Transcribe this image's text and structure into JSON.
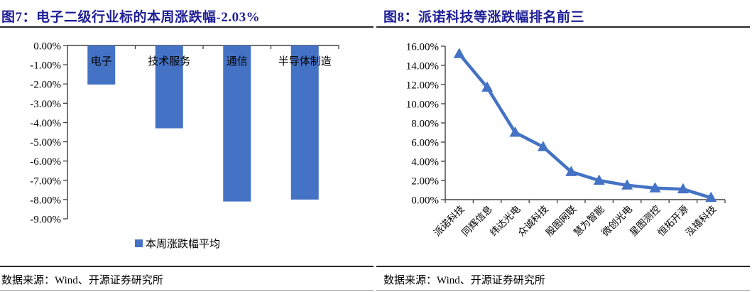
{
  "colors": {
    "accent_blue": "#4472C4",
    "title_navy": "#1E1E96",
    "axis_gray": "#404040",
    "rule_dark": "#26262E",
    "text_black": "#000000"
  },
  "fig7": {
    "title": "图7：电子二级行业标的本周涨跌幅-2.03%",
    "source_label": "数据来源：",
    "source_text": "Wind、开源证券研究所"
  },
  "fig8": {
    "title": "图8：派诺科技等涨跌幅排名前三",
    "source_label": "数据来源：",
    "source_text": "Wind、开源证券研究所"
  },
  "chart_data": [
    {
      "type": "bar",
      "title": "图7：电子二级行业标的本周涨跌幅-2.03%",
      "categories": [
        "电子",
        "技术服务",
        "通信",
        "半导体制造"
      ],
      "values": [
        -2.03,
        -4.3,
        -8.1,
        -8.0
      ],
      "xlabel": "",
      "ylabel": "",
      "ylim": [
        -9,
        0
      ],
      "yticks": [
        "0.00%",
        "-1.00%",
        "-2.00%",
        "-3.00%",
        "-4.00%",
        "-5.00%",
        "-6.00%",
        "-7.00%",
        "-8.00%",
        "-9.00%"
      ],
      "legend": [
        "本周涨跌幅平均"
      ],
      "legend_position": "bottom",
      "grid": false,
      "bar_color": "#4472C4",
      "category_label_position": "top-inside"
    },
    {
      "type": "line",
      "title": "图8：派诺科技等涨跌幅排名前三",
      "categories": [
        "派诺科技",
        "同辉信息",
        "纬达光电",
        "众诚科技",
        "殷图网联",
        "慧为智能",
        "微创光电",
        "星图测控",
        "恒拓开源",
        "泓禧科技"
      ],
      "values": [
        15.2,
        11.7,
        7.0,
        5.5,
        2.9,
        2.0,
        1.5,
        1.2,
        1.1,
        0.2
      ],
      "xlabel": "",
      "ylabel": "",
      "ylim": [
        0,
        16
      ],
      "yticks": [
        "16.00%",
        "14.00%",
        "12.00%",
        "10.00%",
        "8.00%",
        "6.00%",
        "4.00%",
        "2.00%",
        "0.00%"
      ],
      "marker": "triangle-up",
      "line_color": "#4472C4",
      "grid": false,
      "legend_position": "none",
      "xtick_rotation": 45
    }
  ]
}
